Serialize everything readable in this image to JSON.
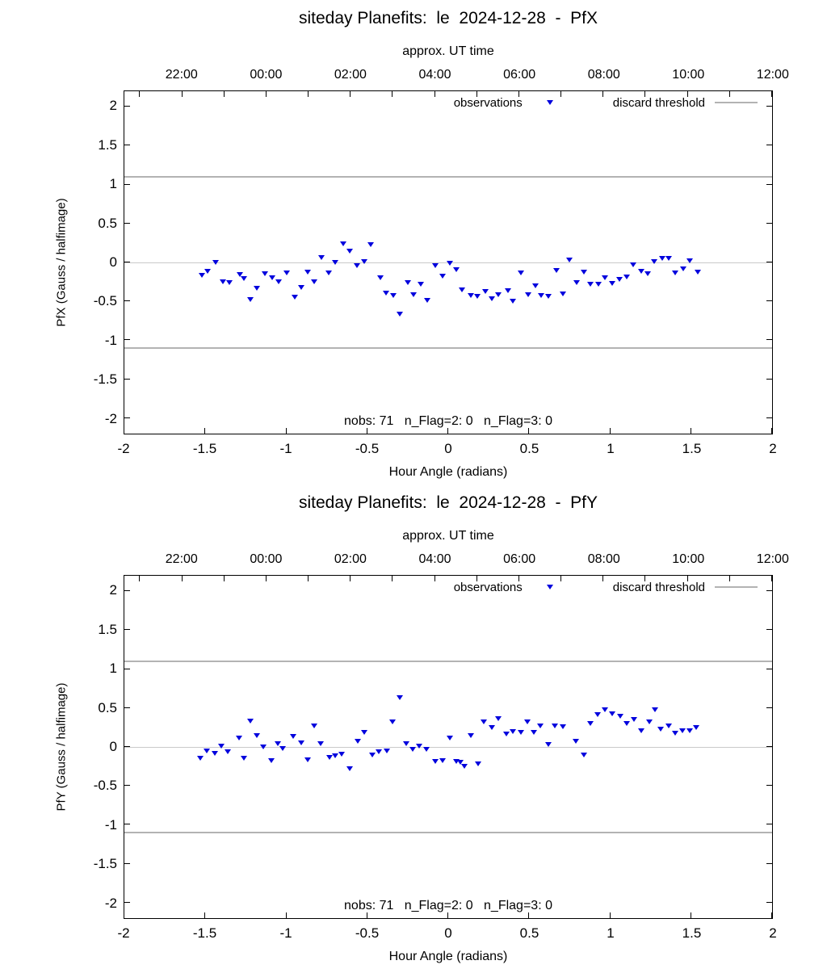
{
  "colors": {
    "marker": "#0000dd",
    "threshold": "#b3b3b3",
    "zero_line": "#c9c9c9",
    "axis": "#000000"
  },
  "chart_data": [
    {
      "type": "scatter",
      "title": "siteday Planefits:  le  2024-12-28  -  PfX",
      "x2label": "approx. UT time",
      "xlabel": "Hour Angle (radians)",
      "ylabel": "PfX (Gauss / halfimage)",
      "stats": "nobs: 71   n_Flag=2: 0   n_Flag=3: 0",
      "legend": [
        "observations",
        "discard threshold"
      ],
      "xlim": [
        -2,
        2
      ],
      "ylim": [
        -2.2,
        2.2
      ],
      "x_ticks": [
        -2,
        -1.5,
        -1,
        -0.5,
        0,
        0.5,
        1,
        1.5,
        2
      ],
      "y_ticks": [
        -2,
        -1.5,
        -1,
        -0.5,
        0,
        0.5,
        1,
        1.5,
        2
      ],
      "ut_ticks": [
        [
          null,
          0.0242
        ],
        [
          "22:00",
          0.0893
        ],
        [
          null,
          0.1543
        ],
        [
          "00:00",
          0.2194
        ],
        [
          null,
          0.2844
        ],
        [
          "02:00",
          0.3494
        ],
        [
          null,
          0.4145
        ],
        [
          "04:00",
          0.4795
        ],
        [
          null,
          0.5446
        ],
        [
          "06:00",
          0.6096
        ],
        [
          null,
          0.6746
        ],
        [
          "08:00",
          0.7397
        ],
        [
          null,
          0.8047
        ],
        [
          "10:00",
          0.8698
        ],
        [
          null,
          0.9348
        ],
        [
          "12:00",
          0.9998
        ]
      ],
      "threshold_values": [
        1.1,
        -1.1
      ],
      "zero_line": 0,
      "points": [
        [
          -1.52,
          -0.17
        ],
        [
          -1.485,
          -0.11
        ],
        [
          -1.435,
          0.0
        ],
        [
          -1.39,
          -0.25
        ],
        [
          -1.35,
          -0.26
        ],
        [
          -1.285,
          -0.16
        ],
        [
          -1.26,
          -0.21
        ],
        [
          -1.22,
          -0.475
        ],
        [
          -1.18,
          -0.33
        ],
        [
          -1.13,
          -0.15
        ],
        [
          -1.085,
          -0.2
        ],
        [
          -1.045,
          -0.25
        ],
        [
          -1.0,
          -0.13
        ],
        [
          -0.95,
          -0.45
        ],
        [
          -0.91,
          -0.32
        ],
        [
          -0.87,
          -0.12
        ],
        [
          -0.83,
          -0.25
        ],
        [
          -0.785,
          0.06
        ],
        [
          -0.74,
          -0.14
        ],
        [
          -0.7,
          0.0
        ],
        [
          -0.65,
          0.24
        ],
        [
          -0.61,
          0.15
        ],
        [
          -0.565,
          -0.04
        ],
        [
          -0.52,
          0.01
        ],
        [
          -0.48,
          0.23
        ],
        [
          -0.42,
          -0.2
        ],
        [
          -0.385,
          -0.39
        ],
        [
          -0.34,
          -0.43
        ],
        [
          -0.3,
          -0.66
        ],
        [
          -0.25,
          -0.26
        ],
        [
          -0.215,
          -0.42
        ],
        [
          -0.17,
          -0.28
        ],
        [
          -0.13,
          -0.49
        ],
        [
          -0.08,
          -0.04
        ],
        [
          -0.035,
          -0.18
        ],
        [
          0.01,
          -0.01
        ],
        [
          0.05,
          -0.095
        ],
        [
          0.085,
          -0.35
        ],
        [
          0.14,
          -0.43
        ],
        [
          0.18,
          -0.44
        ],
        [
          0.23,
          -0.37
        ],
        [
          0.27,
          -0.465
        ],
        [
          0.31,
          -0.42
        ],
        [
          0.37,
          -0.36
        ],
        [
          0.4,
          -0.5
        ],
        [
          0.45,
          -0.13
        ],
        [
          0.495,
          -0.41
        ],
        [
          0.54,
          -0.3
        ],
        [
          0.575,
          -0.43
        ],
        [
          0.62,
          -0.44
        ],
        [
          0.67,
          -0.1
        ],
        [
          0.71,
          -0.4
        ],
        [
          0.75,
          0.03
        ],
        [
          0.795,
          -0.26
        ],
        [
          0.84,
          -0.12
        ],
        [
          0.88,
          -0.28
        ],
        [
          0.93,
          -0.275
        ],
        [
          0.97,
          -0.2
        ],
        [
          1.01,
          -0.27
        ],
        [
          1.055,
          -0.22
        ],
        [
          1.1,
          -0.19
        ],
        [
          1.14,
          -0.03
        ],
        [
          1.19,
          -0.11
        ],
        [
          1.23,
          -0.15
        ],
        [
          1.27,
          0.01
        ],
        [
          1.32,
          0.05
        ],
        [
          1.36,
          0.05
        ],
        [
          1.4,
          -0.14
        ],
        [
          1.45,
          -0.08
        ],
        [
          1.49,
          0.02
        ],
        [
          1.54,
          -0.12
        ]
      ]
    },
    {
      "type": "scatter",
      "title": "siteday Planefits:  le  2024-12-28  -  PfY",
      "x2label": "approx. UT time",
      "xlabel": "Hour Angle (radians)",
      "ylabel": "PfY (Gauss / halfimage)",
      "stats": "nobs: 71   n_Flag=2: 0   n_Flag=3: 0",
      "legend": [
        "observations",
        "discard threshold"
      ],
      "xlim": [
        -2,
        2
      ],
      "ylim": [
        -2.2,
        2.2
      ],
      "x_ticks": [
        -2,
        -1.5,
        -1,
        -0.5,
        0,
        0.5,
        1,
        1.5,
        2
      ],
      "y_ticks": [
        -2,
        -1.5,
        -1,
        -0.5,
        0,
        0.5,
        1,
        1.5,
        2
      ],
      "ut_ticks": [
        [
          null,
          0.0242
        ],
        [
          "22:00",
          0.0893
        ],
        [
          null,
          0.1543
        ],
        [
          "00:00",
          0.2194
        ],
        [
          null,
          0.2844
        ],
        [
          "02:00",
          0.3494
        ],
        [
          null,
          0.4145
        ],
        [
          "04:00",
          0.4795
        ],
        [
          null,
          0.5446
        ],
        [
          "06:00",
          0.6096
        ],
        [
          null,
          0.6746
        ],
        [
          "08:00",
          0.7397
        ],
        [
          null,
          0.8047
        ],
        [
          "10:00",
          0.8698
        ],
        [
          null,
          0.9348
        ],
        [
          "12:00",
          0.9998
        ]
      ],
      "threshold_values": [
        1.1,
        -1.1
      ],
      "zero_line": 0,
      "points": [
        [
          -1.53,
          -0.15
        ],
        [
          -1.49,
          -0.05
        ],
        [
          -1.44,
          -0.08
        ],
        [
          -1.4,
          0.01
        ],
        [
          -1.36,
          -0.06
        ],
        [
          -1.29,
          0.11
        ],
        [
          -1.26,
          -0.15
        ],
        [
          -1.22,
          0.33
        ],
        [
          -1.18,
          0.15
        ],
        [
          -1.14,
          0.0
        ],
        [
          -1.09,
          -0.18
        ],
        [
          -1.05,
          0.04
        ],
        [
          -1.02,
          -0.02
        ],
        [
          -0.96,
          0.14
        ],
        [
          -0.91,
          0.05
        ],
        [
          -0.87,
          -0.17
        ],
        [
          -0.83,
          0.27
        ],
        [
          -0.79,
          0.04
        ],
        [
          -0.735,
          -0.14
        ],
        [
          -0.7,
          -0.11
        ],
        [
          -0.66,
          -0.09
        ],
        [
          -0.61,
          -0.28
        ],
        [
          -0.56,
          0.07
        ],
        [
          -0.52,
          0.19
        ],
        [
          -0.47,
          -0.1
        ],
        [
          -0.43,
          -0.06
        ],
        [
          -0.38,
          -0.05
        ],
        [
          -0.345,
          0.32
        ],
        [
          -0.3,
          0.63
        ],
        [
          -0.26,
          0.04
        ],
        [
          -0.22,
          -0.03
        ],
        [
          -0.18,
          0.01
        ],
        [
          -0.135,
          -0.03
        ],
        [
          -0.08,
          -0.19
        ],
        [
          -0.035,
          -0.18
        ],
        [
          0.01,
          0.11
        ],
        [
          0.05,
          -0.19
        ],
        [
          0.075,
          -0.2
        ],
        [
          0.1,
          -0.25
        ],
        [
          0.14,
          0.15
        ],
        [
          0.185,
          -0.22
        ],
        [
          0.22,
          0.325
        ],
        [
          0.27,
          0.25
        ],
        [
          0.31,
          0.36
        ],
        [
          0.36,
          0.17
        ],
        [
          0.4,
          0.2
        ],
        [
          0.45,
          0.19
        ],
        [
          0.49,
          0.32
        ],
        [
          0.53,
          0.19
        ],
        [
          0.57,
          0.27
        ],
        [
          0.62,
          0.03
        ],
        [
          0.66,
          0.27
        ],
        [
          0.71,
          0.26
        ],
        [
          0.79,
          0.07
        ],
        [
          0.84,
          -0.1
        ],
        [
          0.88,
          0.3
        ],
        [
          0.925,
          0.42
        ],
        [
          0.97,
          0.48
        ],
        [
          1.01,
          0.43
        ],
        [
          1.06,
          0.39
        ],
        [
          1.1,
          0.305
        ],
        [
          1.145,
          0.35
        ],
        [
          1.19,
          0.21
        ],
        [
          1.24,
          0.32
        ],
        [
          1.275,
          0.48
        ],
        [
          1.31,
          0.23
        ],
        [
          1.36,
          0.27
        ],
        [
          1.4,
          0.18
        ],
        [
          1.445,
          0.21
        ],
        [
          1.49,
          0.21
        ],
        [
          1.53,
          0.25
        ]
      ]
    }
  ]
}
